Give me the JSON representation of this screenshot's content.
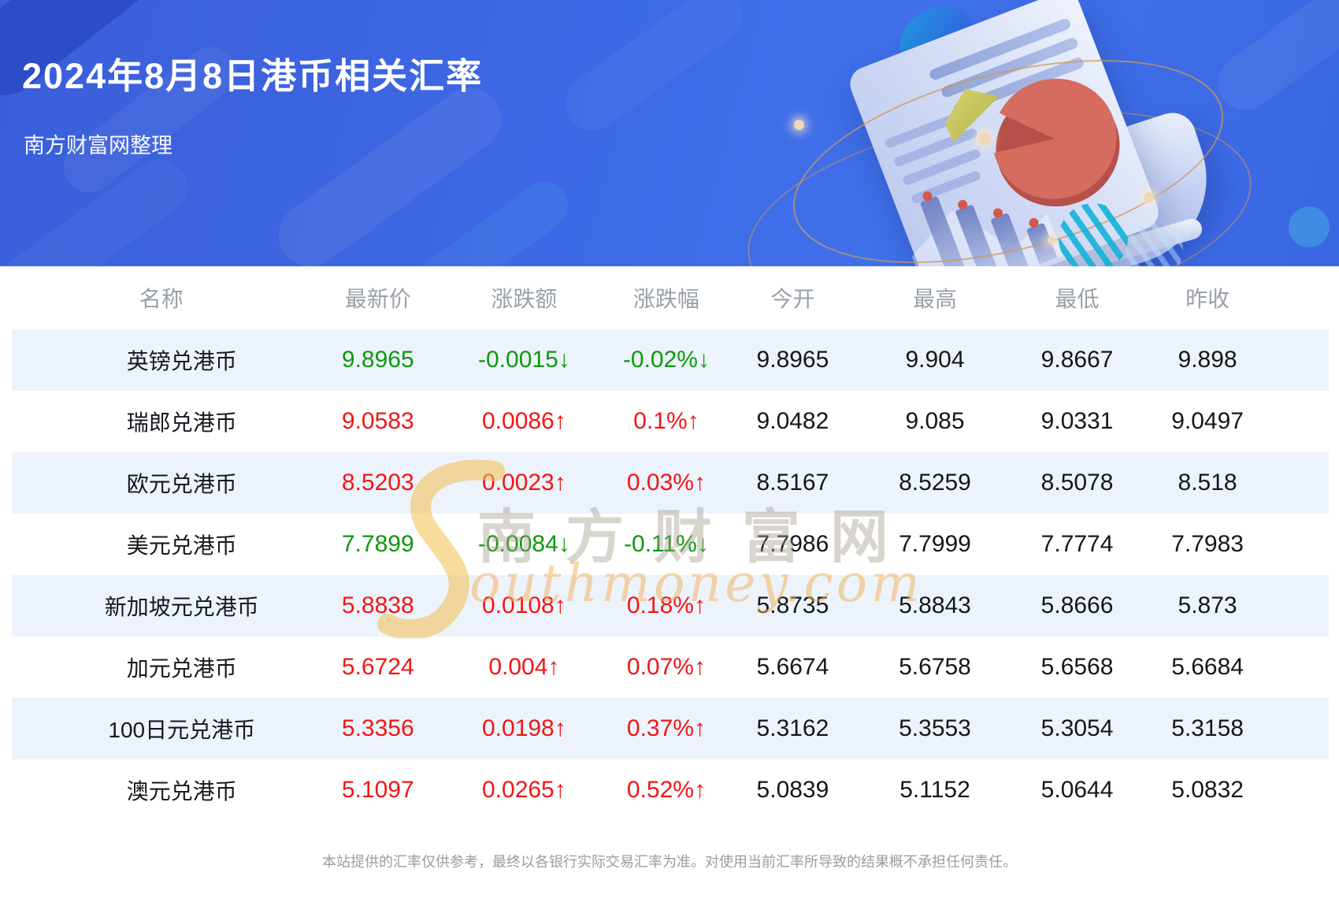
{
  "hero": {
    "title": "2024年8月8日港币相关汇率",
    "subtitle": "南方财富网整理"
  },
  "table": {
    "headers": [
      "名称",
      "最新价",
      "涨跌额",
      "涨跌幅",
      "今开",
      "最高",
      "最低",
      "昨收"
    ],
    "rows": [
      {
        "name": "英镑兑港币",
        "last": "9.8965",
        "change": "-0.0015↓",
        "pct": "-0.02%↓",
        "open": "9.8965",
        "high": "9.904",
        "low": "9.8667",
        "prev": "9.898",
        "trend": "down"
      },
      {
        "name": "瑞郎兑港币",
        "last": "9.0583",
        "change": "0.0086↑",
        "pct": "0.1%↑",
        "open": "9.0482",
        "high": "9.085",
        "low": "9.0331",
        "prev": "9.0497",
        "trend": "up"
      },
      {
        "name": "欧元兑港币",
        "last": "8.5203",
        "change": "0.0023↑",
        "pct": "0.03%↑",
        "open": "8.5167",
        "high": "8.5259",
        "low": "8.5078",
        "prev": "8.518",
        "trend": "up"
      },
      {
        "name": "美元兑港币",
        "last": "7.7899",
        "change": "-0.0084↓",
        "pct": "-0.11%↓",
        "open": "7.7986",
        "high": "7.7999",
        "low": "7.7774",
        "prev": "7.7983",
        "trend": "down"
      },
      {
        "name": "新加坡元兑港币",
        "last": "5.8838",
        "change": "0.0108↑",
        "pct": "0.18%↑",
        "open": "5.8735",
        "high": "5.8843",
        "low": "5.8666",
        "prev": "5.873",
        "trend": "up"
      },
      {
        "name": "加元兑港币",
        "last": "5.6724",
        "change": "0.004↑",
        "pct": "0.07%↑",
        "open": "5.6674",
        "high": "5.6758",
        "low": "5.6568",
        "prev": "5.6684",
        "trend": "up"
      },
      {
        "name": "100日元兑港币",
        "last": "5.3356",
        "change": "0.0198↑",
        "pct": "0.37%↑",
        "open": "5.3162",
        "high": "5.3553",
        "low": "5.3054",
        "prev": "5.3158",
        "trend": "up"
      },
      {
        "name": "澳元兑港币",
        "last": "5.1097",
        "change": "0.0265↑",
        "pct": "0.52%↑",
        "open": "5.0839",
        "high": "5.1152",
        "low": "5.0644",
        "prev": "5.0832",
        "trend": "up"
      }
    ]
  },
  "watermark": {
    "brand": "南方财富网",
    "domain": "outhmoney.com"
  },
  "footer": {
    "disclaimer": "本站提供的汇率仅供参考，最终以各银行实际交易汇率为准。对使用当前汇率所导致的结果概不承担任何责任。"
  },
  "colors": {
    "up": "#f41414",
    "down": "#0c9a0c",
    "hero_blue": "#3e66e4",
    "row_band": "#edf3fb",
    "header_text": "#9aa0a8"
  }
}
